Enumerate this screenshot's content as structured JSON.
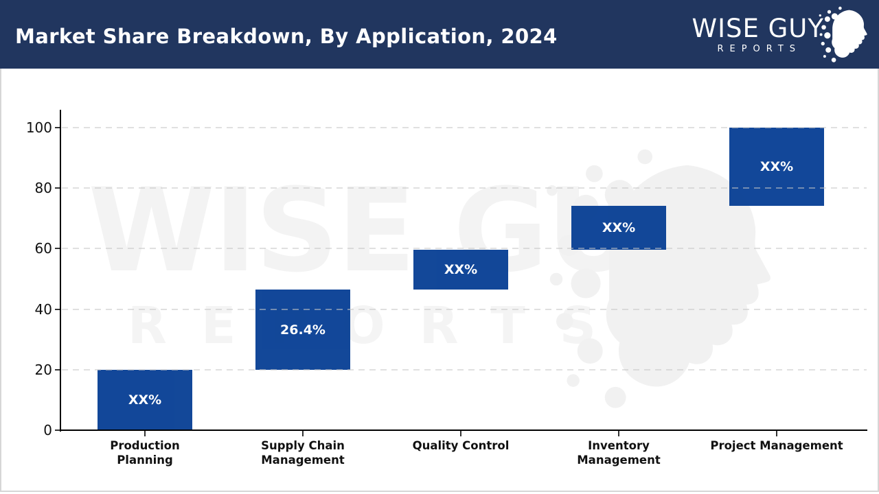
{
  "header": {
    "title": "Market Share Breakdown, By Application, 2024",
    "logo": {
      "line1": "WISE GUY",
      "line2": "REPORTS"
    }
  },
  "watermark": {
    "line1": "WISE GUY",
    "line2": "REPORTS"
  },
  "colors": {
    "header_bg": "#21365f",
    "bar_blue": "#0b4296",
    "bar_label_text": "#ffffff",
    "axis_text": "#111111",
    "gridline_gray": "#d9d9d9",
    "watermark_gray": "#f3f3f3"
  },
  "chart_data": {
    "type": "bar",
    "variant": "floating-segment-waterfall",
    "title": "Market Share Breakdown, By Application, 2024",
    "categories": [
      "Production\nPlanning",
      "Supply Chain\nManagement",
      "Quality Control",
      "Inventory\nManagement",
      "Project Management"
    ],
    "bars": [
      {
        "category": "Production Planning",
        "start": 0,
        "end": 20,
        "label": "XX%"
      },
      {
        "category": "Supply Chain Management",
        "start": 20,
        "end": 46.4,
        "label": "26.4%"
      },
      {
        "category": "Quality Control",
        "start": 46.4,
        "end": 59.6,
        "label": "XX%"
      },
      {
        "category": "Inventory Management",
        "start": 59.6,
        "end": 74.2,
        "label": "XX%"
      },
      {
        "category": "Project Management",
        "start": 74.2,
        "end": 100,
        "label": "XX%"
      }
    ],
    "yticks": [
      0,
      20,
      40,
      60,
      80,
      100
    ],
    "ylim": [
      0,
      105
    ],
    "xlabel": "",
    "ylabel": "",
    "grid": "horizontal-dashed",
    "legend": "none",
    "bar_color": "#0b4296",
    "bar_label_color": "#ffffff"
  }
}
